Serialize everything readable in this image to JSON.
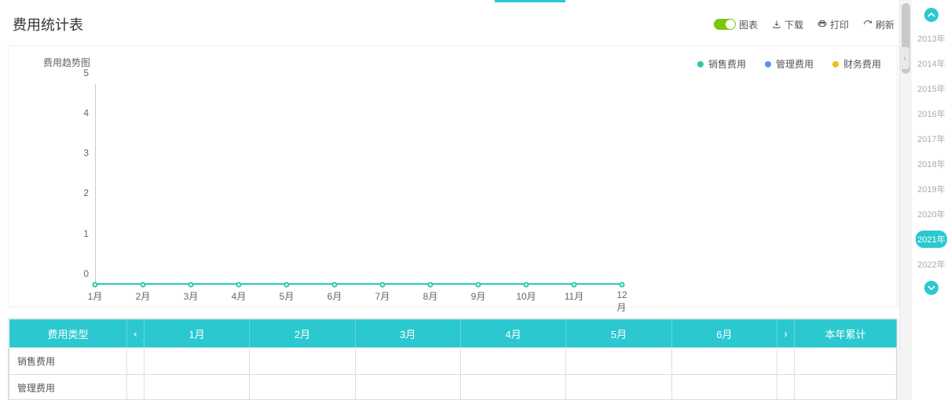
{
  "colors": {
    "accent": "#2cc8cf",
    "toggle_on": "#7ac70c",
    "header_bg": "#2cc8cf",
    "rail_arrow_bg": "#2cc8cf",
    "year_active_bg": "#2cc8cf"
  },
  "header": {
    "title": "费用统计表",
    "toggle_label": "图表",
    "toggle_on": true,
    "download_label": "下载",
    "print_label": "打印",
    "refresh_label": "刷新"
  },
  "chart": {
    "title": "费用趋势图",
    "type": "line",
    "legend": [
      {
        "label": "销售费用",
        "color": "#2fc9b0"
      },
      {
        "label": "管理费用",
        "color": "#5b8ff9"
      },
      {
        "label": "财务费用",
        "color": "#f6bd16"
      }
    ],
    "y": {
      "min": 0,
      "max": 5,
      "ticks": [
        0,
        1,
        2,
        3,
        4,
        5
      ],
      "grid": false,
      "axis_color": "#cccccc",
      "label_color": "#666666",
      "label_fontsize": 12
    },
    "x": {
      "labels": [
        "1月",
        "2月",
        "3月",
        "4月",
        "5月",
        "6月",
        "7月",
        "8月",
        "9月",
        "10月",
        "11月",
        "12月"
      ],
      "axis_color": "#cccccc",
      "label_color": "#666666",
      "label_fontsize": 12
    },
    "series": [
      {
        "name": "销售费用",
        "color": "#2fc9b0",
        "values": [
          0,
          0,
          0,
          0,
          0,
          0,
          0,
          0,
          0,
          0,
          0,
          0
        ],
        "line_width": 2,
        "marker": "circle",
        "marker_size": 7
      }
    ],
    "background_color": "#ffffff"
  },
  "table": {
    "header_bg": "#2cc8cf",
    "type_col_label": "费用类型",
    "total_col_label": "本年累计",
    "month_cols": [
      "1月",
      "2月",
      "3月",
      "4月",
      "5月",
      "6月"
    ],
    "rows": [
      {
        "label": "销售费用",
        "cells": [
          "",
          "",
          "",
          "",
          "",
          ""
        ],
        "total": ""
      },
      {
        "label": "管理费用",
        "cells": [
          "",
          "",
          "",
          "",
          "",
          ""
        ],
        "total": ""
      }
    ]
  },
  "year_rail": {
    "years": [
      "2013年",
      "2014年",
      "2015年",
      "2016年",
      "2017年",
      "2018年",
      "2019年",
      "2020年",
      "2021年",
      "2022年"
    ],
    "active": "2021年"
  }
}
